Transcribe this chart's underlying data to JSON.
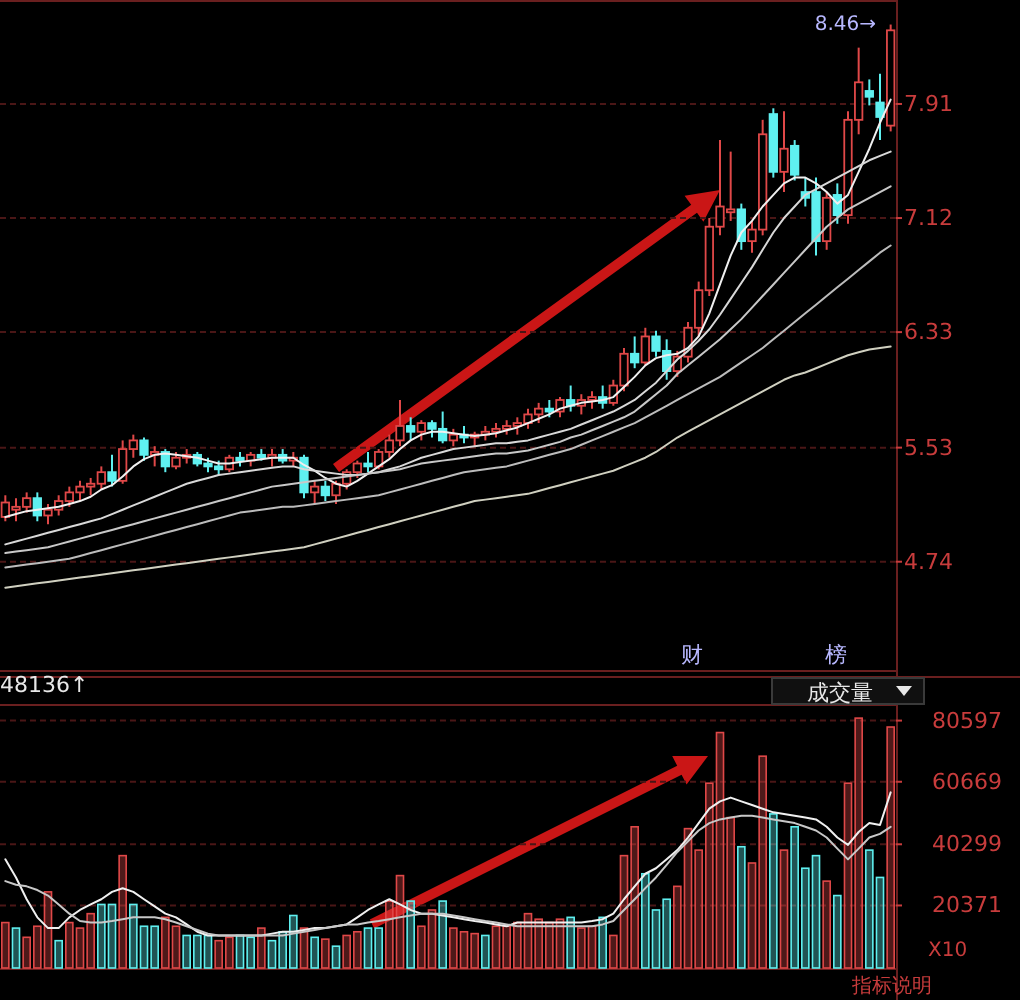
{
  "chart_data": [
    {
      "type": "candlestick",
      "categories": [
        null,
        null,
        null,
        null,
        null,
        null,
        null,
        null,
        null,
        null,
        null,
        null,
        null,
        null,
        null,
        null,
        null,
        null,
        null,
        null,
        null,
        null,
        null,
        null,
        null,
        null,
        null,
        null,
        null,
        null,
        null,
        null,
        null,
        null,
        null,
        null,
        null,
        null,
        null,
        null,
        null,
        null,
        null,
        null,
        null,
        null,
        null,
        null,
        null,
        null,
        null,
        null,
        null,
        null,
        null,
        null,
        null,
        null,
        null,
        null,
        null,
        null,
        null,
        null,
        null,
        null,
        null,
        null,
        null,
        null,
        null,
        null,
        null,
        null,
        null,
        null,
        null,
        null,
        null,
        null,
        null,
        null,
        null,
        null
      ],
      "ohlc": [
        [
          5.05,
          5.2,
          5.02,
          5.15
        ],
        [
          5.1,
          5.18,
          5.02,
          5.12
        ],
        [
          5.12,
          5.22,
          5.08,
          5.18
        ],
        [
          5.18,
          5.22,
          5.02,
          5.06
        ],
        [
          5.06,
          5.14,
          5.0,
          5.1
        ],
        [
          5.1,
          5.2,
          5.06,
          5.16
        ],
        [
          5.16,
          5.26,
          5.12,
          5.22
        ],
        [
          5.22,
          5.3,
          5.16,
          5.26
        ],
        [
          5.26,
          5.32,
          5.2,
          5.28
        ],
        [
          5.28,
          5.4,
          5.24,
          5.36
        ],
        [
          5.36,
          5.48,
          5.26,
          5.3
        ],
        [
          5.3,
          5.58,
          5.28,
          5.52
        ],
        [
          5.52,
          5.62,
          5.46,
          5.58
        ],
        [
          5.58,
          5.6,
          5.44,
          5.48
        ],
        [
          5.48,
          5.54,
          5.4,
          5.5
        ],
        [
          5.5,
          5.52,
          5.36,
          5.4
        ],
        [
          5.4,
          5.5,
          5.38,
          5.46
        ],
        [
          5.46,
          5.52,
          5.42,
          5.48
        ],
        [
          5.48,
          5.5,
          5.4,
          5.42
        ],
        [
          5.42,
          5.46,
          5.36,
          5.4
        ],
        [
          5.4,
          5.44,
          5.34,
          5.38
        ],
        [
          5.38,
          5.48,
          5.36,
          5.46
        ],
        [
          5.46,
          5.5,
          5.4,
          5.44
        ],
        [
          5.44,
          5.5,
          5.4,
          5.48
        ],
        [
          5.48,
          5.52,
          5.44,
          5.46
        ],
        [
          5.46,
          5.52,
          5.4,
          5.48
        ],
        [
          5.48,
          5.52,
          5.42,
          5.44
        ],
        [
          5.44,
          5.5,
          5.4,
          5.46
        ],
        [
          5.46,
          5.48,
          5.18,
          5.22
        ],
        [
          5.22,
          5.3,
          5.14,
          5.26
        ],
        [
          5.26,
          5.3,
          5.16,
          5.2
        ],
        [
          5.2,
          5.3,
          5.14,
          5.28
        ],
        [
          5.28,
          5.38,
          5.24,
          5.36
        ],
        [
          5.36,
          5.44,
          5.32,
          5.42
        ],
        [
          5.42,
          5.5,
          5.36,
          5.4
        ],
        [
          5.4,
          5.52,
          5.38,
          5.5
        ],
        [
          5.5,
          5.62,
          5.46,
          5.58
        ],
        [
          5.58,
          5.86,
          5.54,
          5.68
        ],
        [
          5.68,
          5.74,
          5.58,
          5.64
        ],
        [
          5.64,
          5.72,
          5.58,
          5.7
        ],
        [
          5.7,
          5.72,
          5.6,
          5.66
        ],
        [
          5.66,
          5.78,
          5.56,
          5.58
        ],
        [
          5.58,
          5.66,
          5.54,
          5.62
        ],
        [
          5.62,
          5.68,
          5.56,
          5.6
        ],
        [
          5.6,
          5.64,
          5.54,
          5.62
        ],
        [
          5.62,
          5.68,
          5.58,
          5.64
        ],
        [
          5.64,
          5.7,
          5.6,
          5.66
        ],
        [
          5.66,
          5.72,
          5.62,
          5.68
        ],
        [
          5.68,
          5.74,
          5.62,
          5.7
        ],
        [
          5.7,
          5.8,
          5.66,
          5.76
        ],
        [
          5.76,
          5.84,
          5.7,
          5.8
        ],
        [
          5.8,
          5.86,
          5.74,
          5.78
        ],
        [
          5.78,
          5.88,
          5.74,
          5.86
        ],
        [
          5.86,
          5.96,
          5.78,
          5.82
        ],
        [
          5.82,
          5.9,
          5.76,
          5.86
        ],
        [
          5.86,
          5.92,
          5.8,
          5.88
        ],
        [
          5.88,
          5.96,
          5.8,
          5.84
        ],
        [
          5.84,
          6.0,
          5.82,
          5.96
        ],
        [
          5.96,
          6.22,
          5.92,
          6.18
        ],
        [
          6.18,
          6.3,
          6.08,
          6.12
        ],
        [
          6.12,
          6.36,
          6.1,
          6.3
        ],
        [
          6.3,
          6.34,
          6.16,
          6.2
        ],
        [
          6.2,
          6.28,
          6.0,
          6.06
        ],
        [
          6.06,
          6.2,
          6.02,
          6.16
        ],
        [
          6.16,
          6.4,
          6.12,
          6.36
        ],
        [
          6.36,
          6.68,
          6.3,
          6.62
        ],
        [
          6.62,
          7.12,
          6.58,
          7.06
        ],
        [
          7.06,
          7.66,
          7.0,
          7.2
        ],
        [
          7.16,
          7.58,
          7.1,
          7.18
        ],
        [
          7.18,
          7.22,
          6.9,
          6.96
        ],
        [
          6.96,
          7.1,
          6.88,
          7.04
        ],
        [
          7.04,
          7.8,
          7.0,
          7.7
        ],
        [
          7.84,
          7.88,
          7.4,
          7.44
        ],
        [
          7.44,
          7.86,
          7.3,
          7.6
        ],
        [
          7.62,
          7.66,
          7.38,
          7.42
        ],
        [
          7.3,
          7.4,
          7.2,
          7.26
        ],
        [
          7.3,
          7.4,
          6.86,
          6.96
        ],
        [
          6.96,
          7.3,
          6.9,
          7.26
        ],
        [
          7.28,
          7.36,
          7.08,
          7.14
        ],
        [
          7.14,
          7.86,
          7.08,
          7.8
        ],
        [
          7.8,
          8.3,
          7.7,
          8.06
        ],
        [
          8.0,
          8.08,
          7.9,
          7.96
        ],
        [
          7.92,
          8.12,
          7.66,
          7.82
        ],
        [
          7.76,
          8.46,
          7.72,
          8.42
        ]
      ],
      "colors": [
        "#e04848",
        "#e04848",
        "#e04848",
        "#5ff0f0",
        "#e04848",
        "#e04848",
        "#e04848",
        "#e04848",
        "#e04848",
        "#e04848",
        "#5ff0f0",
        "#e04848",
        "#e04848",
        "#5ff0f0",
        "#e04848",
        "#5ff0f0",
        "#e04848",
        "#e04848",
        "#5ff0f0",
        "#5ff0f0",
        "#5ff0f0",
        "#e04848",
        "#5ff0f0",
        "#e04848",
        "#5ff0f0",
        "#e04848",
        "#5ff0f0",
        "#e04848",
        "#5ff0f0",
        "#e04848",
        "#5ff0f0",
        "#e04848",
        "#e04848",
        "#e04848",
        "#5ff0f0",
        "#e04848",
        "#e04848",
        "#e04848",
        "#5ff0f0",
        "#e04848",
        "#5ff0f0",
        "#5ff0f0",
        "#e04848",
        "#5ff0f0",
        "#e04848",
        "#e04848",
        "#e04848",
        "#e04848",
        "#e04848",
        "#e04848",
        "#e04848",
        "#5ff0f0",
        "#e04848",
        "#5ff0f0",
        "#e04848",
        "#e04848",
        "#5ff0f0",
        "#e04848",
        "#e04848",
        "#5ff0f0",
        "#e04848",
        "#5ff0f0",
        "#5ff0f0",
        "#e04848",
        "#e04848",
        "#e04848",
        "#e04848",
        "#e04848",
        "#e04848",
        "#5ff0f0",
        "#e04848",
        "#e04848",
        "#5ff0f0",
        "#e04848",
        "#5ff0f0",
        "#5ff0f0",
        "#5ff0f0",
        "#e04848",
        "#5ff0f0",
        "#e04848",
        "#e04848",
        "#5ff0f0",
        "#5ff0f0",
        "#e04848"
      ],
      "series": [
        {
          "type": "line",
          "color": "#f0f0f0",
          "values": [
            5.05,
            5.07,
            5.09,
            5.1,
            5.11,
            5.12,
            5.14,
            5.16,
            5.19,
            5.24,
            5.27,
            5.33,
            5.4,
            5.45,
            5.48,
            5.49,
            5.48,
            5.47,
            5.46,
            5.44,
            5.42,
            5.42,
            5.43,
            5.44,
            5.45,
            5.46,
            5.46,
            5.46,
            5.41,
            5.37,
            5.32,
            5.28,
            5.26,
            5.3,
            5.35,
            5.4,
            5.45,
            5.52,
            5.58,
            5.62,
            5.64,
            5.64,
            5.63,
            5.62,
            5.61,
            5.62,
            5.63,
            5.65,
            5.67,
            5.7,
            5.73,
            5.76,
            5.8,
            5.82,
            5.84,
            5.85,
            5.86,
            5.88,
            5.95,
            6.02,
            6.1,
            6.15,
            6.17,
            6.18,
            6.22,
            6.3,
            6.46,
            6.66,
            6.86,
            7.02,
            7.1,
            7.2,
            7.28,
            7.36,
            7.4,
            7.4,
            7.36,
            7.3,
            7.22,
            7.28,
            7.44,
            7.6,
            7.78,
            7.94
          ]
        },
        {
          "type": "line",
          "color": "#d8d8d8",
          "values": [
            4.86,
            4.88,
            4.9,
            4.92,
            4.94,
            4.96,
            4.98,
            5.0,
            5.02,
            5.04,
            5.07,
            5.1,
            5.13,
            5.16,
            5.19,
            5.22,
            5.25,
            5.28,
            5.3,
            5.32,
            5.34,
            5.35,
            5.36,
            5.37,
            5.38,
            5.39,
            5.4,
            5.4,
            5.38,
            5.37,
            5.36,
            5.35,
            5.34,
            5.34,
            5.35,
            5.36,
            5.38,
            5.4,
            5.43,
            5.46,
            5.48,
            5.5,
            5.52,
            5.53,
            5.54,
            5.55,
            5.56,
            5.56,
            5.57,
            5.58,
            5.6,
            5.62,
            5.64,
            5.66,
            5.69,
            5.72,
            5.75,
            5.78,
            5.82,
            5.86,
            5.92,
            5.98,
            6.06,
            6.14,
            6.2,
            6.27,
            6.35,
            6.45,
            6.56,
            6.67,
            6.78,
            6.9,
            7.02,
            7.12,
            7.2,
            7.28,
            7.32,
            7.36,
            7.4,
            7.44,
            7.48,
            7.52,
            7.55,
            7.58
          ]
        },
        {
          "type": "line",
          "color": "#c8c8c8",
          "values": [
            4.8,
            4.81,
            4.82,
            4.83,
            4.84,
            4.86,
            4.88,
            4.9,
            4.92,
            4.94,
            4.96,
            4.98,
            5.0,
            5.02,
            5.04,
            5.06,
            5.08,
            5.1,
            5.12,
            5.14,
            5.16,
            5.18,
            5.2,
            5.22,
            5.24,
            5.26,
            5.27,
            5.28,
            5.29,
            5.3,
            5.31,
            5.32,
            5.33,
            5.34,
            5.35,
            5.36,
            5.37,
            5.38,
            5.4,
            5.42,
            5.43,
            5.44,
            5.45,
            5.46,
            5.47,
            5.48,
            5.49,
            5.49,
            5.5,
            5.51,
            5.53,
            5.55,
            5.57,
            5.6,
            5.62,
            5.65,
            5.68,
            5.71,
            5.74,
            5.78,
            5.84,
            5.9,
            5.96,
            6.04,
            6.1,
            6.16,
            6.22,
            6.28,
            6.35,
            6.42,
            6.5,
            6.58,
            6.66,
            6.74,
            6.82,
            6.9,
            6.98,
            7.06,
            7.12,
            7.18,
            7.22,
            7.26,
            7.3,
            7.34
          ]
        },
        {
          "type": "line",
          "color": "#bcbcbc",
          "values": [
            4.7,
            4.71,
            4.72,
            4.73,
            4.74,
            4.75,
            4.76,
            4.78,
            4.8,
            4.82,
            4.84,
            4.86,
            4.88,
            4.9,
            4.92,
            4.94,
            4.96,
            4.98,
            5.0,
            5.02,
            5.04,
            5.06,
            5.08,
            5.09,
            5.1,
            5.11,
            5.12,
            5.12,
            5.13,
            5.14,
            5.15,
            5.16,
            5.17,
            5.18,
            5.19,
            5.2,
            5.22,
            5.24,
            5.26,
            5.28,
            5.3,
            5.32,
            5.34,
            5.36,
            5.37,
            5.38,
            5.39,
            5.4,
            5.42,
            5.44,
            5.46,
            5.48,
            5.5,
            5.52,
            5.55,
            5.58,
            5.61,
            5.64,
            5.67,
            5.7,
            5.74,
            5.78,
            5.82,
            5.86,
            5.9,
            5.94,
            5.98,
            6.02,
            6.07,
            6.12,
            6.17,
            6.22,
            6.28,
            6.34,
            6.4,
            6.46,
            6.52,
            6.58,
            6.64,
            6.7,
            6.76,
            6.82,
            6.88,
            6.93
          ]
        },
        {
          "type": "line",
          "color": "#d0d0c0",
          "values": [
            4.56,
            4.57,
            4.58,
            4.59,
            4.6,
            4.61,
            4.62,
            4.63,
            4.64,
            4.65,
            4.66,
            4.67,
            4.68,
            4.69,
            4.7,
            4.71,
            4.72,
            4.73,
            4.74,
            4.75,
            4.76,
            4.77,
            4.78,
            4.79,
            4.8,
            4.81,
            4.82,
            4.83,
            4.84,
            4.86,
            4.88,
            4.9,
            4.92,
            4.94,
            4.96,
            4.98,
            5.0,
            5.02,
            5.04,
            5.06,
            5.08,
            5.1,
            5.12,
            5.14,
            5.16,
            5.17,
            5.18,
            5.19,
            5.2,
            5.21,
            5.23,
            5.25,
            5.27,
            5.29,
            5.31,
            5.33,
            5.35,
            5.37,
            5.4,
            5.43,
            5.46,
            5.5,
            5.55,
            5.6,
            5.64,
            5.68,
            5.72,
            5.76,
            5.8,
            5.84,
            5.88,
            5.92,
            5.96,
            6.0,
            6.03,
            6.05,
            6.08,
            6.11,
            6.14,
            6.17,
            6.19,
            6.21,
            6.22,
            6.23
          ]
        }
      ],
      "ylim": [
        3.99,
        8.63
      ],
      "yticks": [
        4.74,
        5.53,
        6.33,
        7.12,
        7.91
      ],
      "grid": "y",
      "tick_labels": "y",
      "annotations": [
        "8.46→",
        "财",
        "榜"
      ]
    },
    {
      "type": "bar",
      "title": "成交量",
      "categories": [
        null,
        null,
        null,
        null,
        null,
        null,
        null,
        null,
        null,
        null,
        null,
        null,
        null,
        null,
        null,
        null,
        null,
        null,
        null,
        null,
        null,
        null,
        null,
        null,
        null,
        null,
        null,
        null,
        null,
        null,
        null,
        null,
        null,
        null,
        null,
        null,
        null,
        null,
        null,
        null,
        null,
        null,
        null,
        null,
        null,
        null,
        null,
        null,
        null,
        null,
        null,
        null,
        null,
        null,
        null,
        null,
        null,
        null,
        null,
        null,
        null,
        null,
        null,
        null,
        null,
        null,
        null,
        null,
        null,
        null,
        null,
        null,
        null,
        null,
        null,
        null,
        null,
        null,
        null,
        null,
        null,
        null,
        null,
        null
      ],
      "series": [
        {
          "type": "bar",
          "values": [
            14800,
            13000,
            10000,
            13600,
            24800,
            8900,
            14800,
            13000,
            17700,
            20700,
            20700,
            36600,
            20700,
            13600,
            13600,
            16500,
            13600,
            10600,
            10600,
            10600,
            8900,
            10000,
            10600,
            10000,
            13000,
            8900,
            11800,
            17100,
            13000,
            10000,
            9400,
            7100,
            10600,
            11800,
            13000,
            13000,
            21800,
            30100,
            21800,
            13600,
            18900,
            21800,
            13000,
            11800,
            11200,
            10600,
            13600,
            13600,
            14800,
            17700,
            15900,
            14800,
            15900,
            16500,
            13000,
            13600,
            16500,
            10600,
            36600,
            46000,
            30700,
            18900,
            22400,
            26600,
            45400,
            38400,
            60200,
            76700,
            49000,
            39500,
            34200,
            69000,
            50200,
            38400,
            46000,
            32500,
            36600,
            28300,
            23600,
            60200,
            81400,
            38400,
            29500,
            78500
          ],
          "colors": [
            "#e04848",
            "#5ff0f0",
            "#e04848",
            "#e04848",
            "#e04848",
            "#5ff0f0",
            "#e04848",
            "#e04848",
            "#e04848",
            "#5ff0f0",
            "#5ff0f0",
            "#e04848",
            "#5ff0f0",
            "#5ff0f0",
            "#5ff0f0",
            "#e04848",
            "#e04848",
            "#5ff0f0",
            "#5ff0f0",
            "#5ff0f0",
            "#e04848",
            "#e04848",
            "#5ff0f0",
            "#5ff0f0",
            "#e04848",
            "#5ff0f0",
            "#5ff0f0",
            "#5ff0f0",
            "#e04848",
            "#5ff0f0",
            "#e04848",
            "#5ff0f0",
            "#e04848",
            "#e04848",
            "#5ff0f0",
            "#5ff0f0",
            "#e04848",
            "#e04848",
            "#5ff0f0",
            "#e04848",
            "#e04848",
            "#5ff0f0",
            "#e04848",
            "#e04848",
            "#e04848",
            "#5ff0f0",
            "#e04848",
            "#e04848",
            "#e04848",
            "#e04848",
            "#e04848",
            "#e04848",
            "#e04848",
            "#5ff0f0",
            "#e04848",
            "#e04848",
            "#5ff0f0",
            "#e04848",
            "#e04848",
            "#e04848",
            "#5ff0f0",
            "#5ff0f0",
            "#5ff0f0",
            "#e04848",
            "#e04848",
            "#e04848",
            "#e04848",
            "#e04848",
            "#e04848",
            "#5ff0f0",
            "#e04848",
            "#e04848",
            "#5ff0f0",
            "#e04848",
            "#5ff0f0",
            "#5ff0f0",
            "#5ff0f0",
            "#e04848",
            "#5ff0f0",
            "#e04848",
            "#e04848",
            "#5ff0f0",
            "#5ff0f0",
            "#e04848"
          ]
        },
        {
          "type": "line",
          "color": "#f0f0f0",
          "values": [
            35400,
            29500,
            22400,
            16500,
            13000,
            13000,
            16500,
            18900,
            20700,
            22400,
            24800,
            26000,
            24800,
            22400,
            20100,
            17700,
            16500,
            14200,
            11800,
            10600,
            10600,
            10600,
            10600,
            10600,
            10600,
            11200,
            11800,
            11800,
            12400,
            13000,
            13000,
            13600,
            14200,
            16500,
            18900,
            20700,
            22400,
            20700,
            18900,
            17700,
            17700,
            17100,
            16500,
            15900,
            15300,
            14800,
            14200,
            13600,
            14800,
            14800,
            14800,
            14800,
            14800,
            14800,
            14800,
            15300,
            15900,
            17700,
            22400,
            26600,
            30700,
            32500,
            35400,
            38400,
            42500,
            47200,
            51900,
            54300,
            55500,
            54300,
            53100,
            51900,
            50700,
            50200,
            49600,
            49000,
            48400,
            46000,
            42500,
            40100,
            44300,
            47200,
            46600,
            57200
          ]
        },
        {
          "type": "line",
          "color": "#c8c8c8",
          "values": [
            28300,
            27100,
            26600,
            25400,
            23600,
            20700,
            17700,
            15300,
            14800,
            14800,
            15300,
            15900,
            16500,
            16500,
            16500,
            15900,
            14800,
            13600,
            12400,
            11200,
            10600,
            10600,
            10600,
            10600,
            10600,
            10600,
            10600,
            11200,
            11800,
            12400,
            13000,
            13600,
            14200,
            14200,
            14800,
            15300,
            15900,
            16500,
            17100,
            17700,
            17700,
            17700,
            17100,
            16500,
            15900,
            15300,
            14800,
            14200,
            13600,
            13600,
            13600,
            13600,
            13600,
            13600,
            13600,
            13600,
            14200,
            15300,
            18900,
            22400,
            26000,
            29500,
            33600,
            37800,
            41300,
            44800,
            47200,
            48400,
            49000,
            49600,
            49600,
            49000,
            48400,
            47800,
            47200,
            46000,
            44800,
            42500,
            38900,
            35400,
            38900,
            42500,
            43700,
            46000
          ]
        }
      ],
      "ylim": [
        0,
        86000
      ],
      "yticks": [
        20371,
        40299,
        60669,
        80597
      ],
      "grid": "y",
      "tick_labels": "y",
      "annotations": [
        "48136↑",
        "X10",
        "指标说明"
      ]
    }
  ]
}
